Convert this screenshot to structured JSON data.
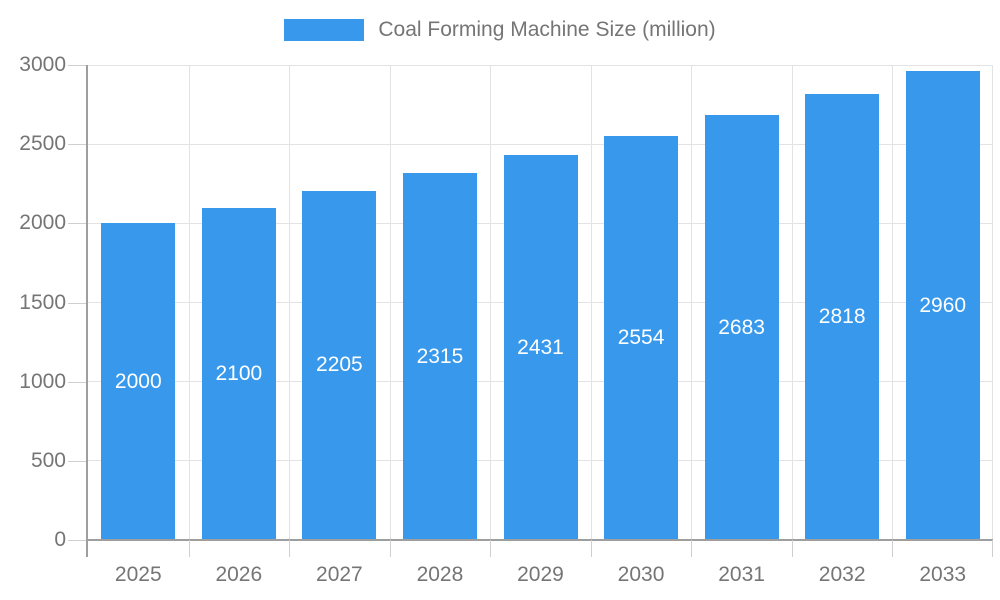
{
  "chart_data": {
    "type": "bar",
    "title": "",
    "legend_label": "Coal Forming Machine Size (million)",
    "legend_position": "top",
    "categories": [
      "2025",
      "2026",
      "2027",
      "2028",
      "2029",
      "2030",
      "2031",
      "2032",
      "2033"
    ],
    "values": [
      2000,
      2100,
      2205,
      2315,
      2431,
      2554,
      2683,
      2818,
      2960
    ],
    "bar_value_labels": [
      "2000",
      "2100",
      "2205",
      "2315",
      "2431",
      "2554",
      "2683",
      "2818",
      "2960"
    ],
    "xlabel": "",
    "ylabel": "",
    "ylim": [
      0,
      3000
    ],
    "ytick_step": 500,
    "ytick_labels": [
      "0",
      "500",
      "1000",
      "1500",
      "2000",
      "2500",
      "3000"
    ],
    "grid": true,
    "colors": {
      "bar": "#3899EC",
      "bar_label_text": "#FFFFFF",
      "axis_text": "#757575",
      "legend_text": "#757575",
      "grid_line": "#E3E3E3",
      "axis_line": "#9E9E9E",
      "tick_mark": "#CFCFCF",
      "background": "#FFFFFF"
    }
  }
}
